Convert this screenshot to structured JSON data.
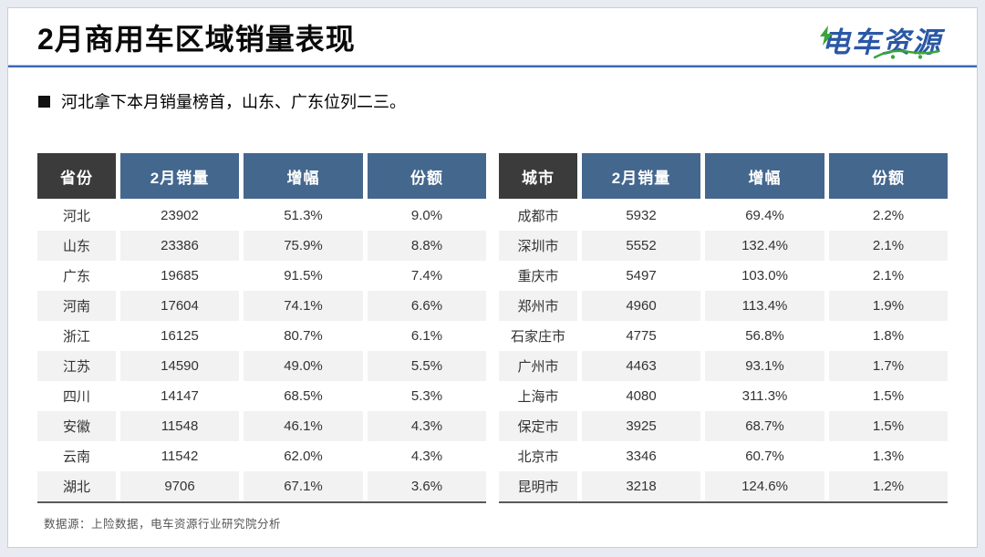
{
  "slide": {
    "title": "2月商用车区域销量表现",
    "logo_text": "电车资源",
    "bullet": "河北拿下本月销量榜首，山东、广东位列二三。",
    "footer": "数据源：上险数据，电车资源行业研究院分析"
  },
  "colors": {
    "accent_blue_rule": "#3e68b2",
    "table_header_blue": "#44678e",
    "table_header_dark": "#3b3b3b",
    "row_stripe_gray": "#f2f2f2",
    "logo_blue": "#2a58a6",
    "logo_green": "#3ba43a"
  },
  "chart_data": [
    {
      "type": "table",
      "headers": [
        "省份",
        "2月销量",
        "增幅",
        "份额"
      ],
      "rows": [
        [
          "河北",
          "23902",
          "51.3%",
          "9.0%"
        ],
        [
          "山东",
          "23386",
          "75.9%",
          "8.8%"
        ],
        [
          "广东",
          "19685",
          "91.5%",
          "7.4%"
        ],
        [
          "河南",
          "17604",
          "74.1%",
          "6.6%"
        ],
        [
          "浙江",
          "16125",
          "80.7%",
          "6.1%"
        ],
        [
          "江苏",
          "14590",
          "49.0%",
          "5.5%"
        ],
        [
          "四川",
          "14147",
          "68.5%",
          "5.3%"
        ],
        [
          "安徽",
          "11548",
          "46.1%",
          "4.3%"
        ],
        [
          "云南",
          "11542",
          "62.0%",
          "4.3%"
        ],
        [
          "湖北",
          "9706",
          "67.1%",
          "3.6%"
        ]
      ]
    },
    {
      "type": "table",
      "headers": [
        "城市",
        "2月销量",
        "增幅",
        "份额"
      ],
      "rows": [
        [
          "成都市",
          "5932",
          "69.4%",
          "2.2%"
        ],
        [
          "深圳市",
          "5552",
          "132.4%",
          "2.1%"
        ],
        [
          "重庆市",
          "5497",
          "103.0%",
          "2.1%"
        ],
        [
          "郑州市",
          "4960",
          "113.4%",
          "1.9%"
        ],
        [
          "石家庄市",
          "4775",
          "56.8%",
          "1.8%"
        ],
        [
          "广州市",
          "4463",
          "93.1%",
          "1.7%"
        ],
        [
          "上海市",
          "4080",
          "311.3%",
          "1.5%"
        ],
        [
          "保定市",
          "3925",
          "68.7%",
          "1.5%"
        ],
        [
          "北京市",
          "3346",
          "60.7%",
          "1.3%"
        ],
        [
          "昆明市",
          "3218",
          "124.6%",
          "1.2%"
        ]
      ]
    }
  ]
}
